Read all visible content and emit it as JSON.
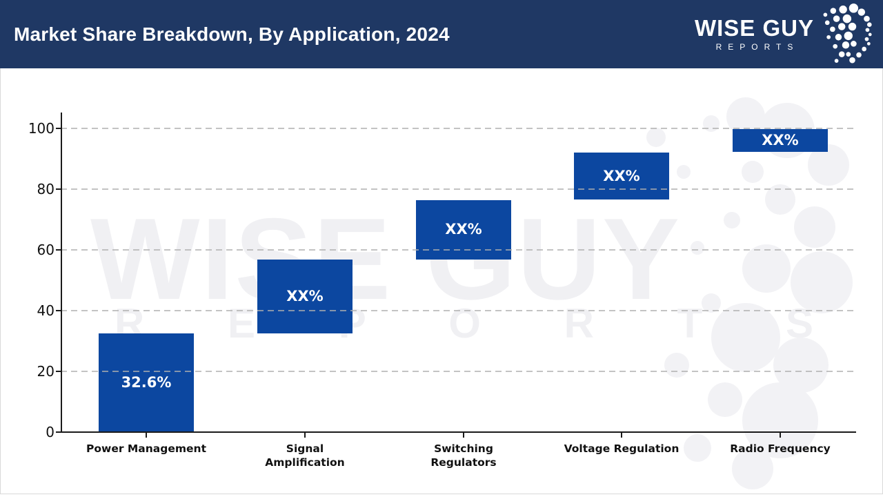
{
  "header": {
    "title": "Market Share Breakdown, By Application, 2024",
    "logo": {
      "name": "WISE GUY",
      "tagline": "REPORTS"
    }
  },
  "watermark": {
    "line1": "WISE GUY",
    "line2": "R E P O R T S"
  },
  "chart_data": {
    "type": "bar",
    "subtype": "waterfall",
    "title": "Market Share Breakdown, By Application, 2024",
    "unit": "%",
    "categories": [
      "Power Management",
      "Signal Amplification",
      "Switching Regulators",
      "Voltage Regulation",
      "Radio Frequency"
    ],
    "category_label_lines": [
      [
        "Power Management"
      ],
      [
        "Signal",
        "Amplification"
      ],
      [
        "Switching",
        "Regulators"
      ],
      [
        "Voltage Regulation"
      ],
      [
        "Radio Frequency"
      ]
    ],
    "segments": [
      {
        "category": "Power Management",
        "start": 0,
        "end": 32.6,
        "label": "32.6%"
      },
      {
        "category": "Signal Amplification",
        "start": 32.6,
        "end": 56.8,
        "label": "XX%"
      },
      {
        "category": "Switching Regulators",
        "start": 56.8,
        "end": 76.4,
        "label": "XX%"
      },
      {
        "category": "Voltage Regulation",
        "start": 76.6,
        "end": 92,
        "label": "XX%"
      },
      {
        "category": "Radio Frequency",
        "start": 92.3,
        "end": 99.8,
        "label": "XX%"
      }
    ],
    "y_ticks": [
      0,
      20,
      40,
      60,
      80,
      100
    ],
    "ylim": [
      0,
      105
    ],
    "grid": "horizontal-dashed",
    "legend": "none",
    "bar_color": "#0c47a0",
    "bar_label_color": "#ffffff"
  },
  "colors": {
    "header_bg": "#1f3864",
    "bar": "#0c47a0",
    "grid_line": "#cccccc",
    "axis": "#1a1a1a",
    "tick_label": "#111111",
    "watermark": "#f0f0f3",
    "card_border": "#d9d9d9"
  }
}
